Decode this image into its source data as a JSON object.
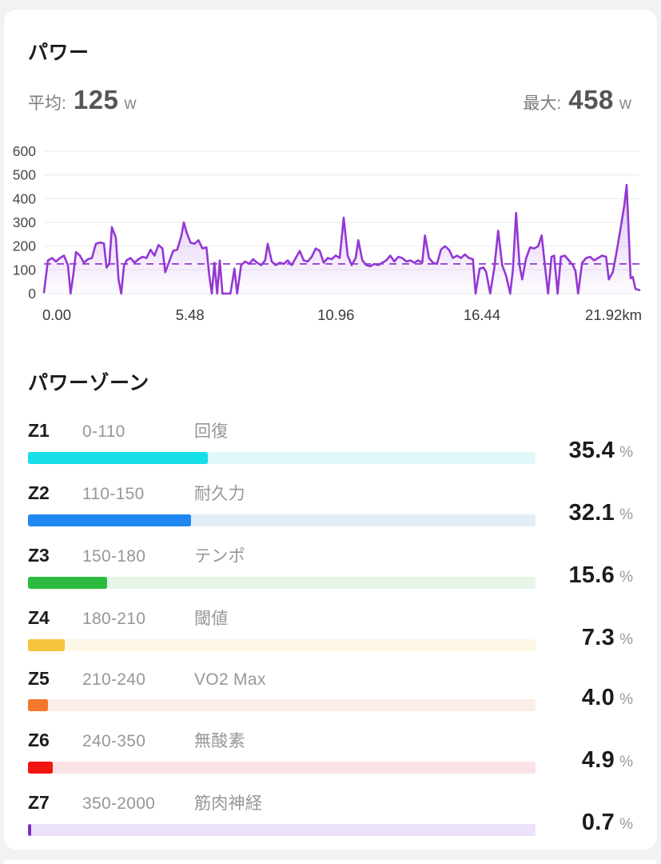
{
  "power_card": {
    "title": "パワー",
    "avg": {
      "label": "平均:",
      "value": "125",
      "unit": "w"
    },
    "max": {
      "label": "最大:",
      "value": "458",
      "unit": "w"
    }
  },
  "chart_data": {
    "type": "area",
    "title": "パワー",
    "ylabel": "w",
    "xlabel": "km",
    "ylim": [
      0,
      600
    ],
    "x_domain": [
      0,
      22.35
    ],
    "grid": "horizontal",
    "average_line": 125,
    "max_value": 458,
    "line_color": "#9338D4",
    "avg_line_color": "#8F3BCE",
    "grid_color": "#E9E9EB",
    "fill_top_color": "rgba(148,63,212,0.30)",
    "fill_bottom_color": "rgba(148,63,212,0.02)",
    "y_ticks": [
      {
        "v": 0,
        "label": "0"
      },
      {
        "v": 100,
        "label": "100"
      },
      {
        "v": 200,
        "label": "200"
      },
      {
        "v": 300,
        "label": "300"
      },
      {
        "v": 400,
        "label": "400"
      },
      {
        "v": 500,
        "label": "500"
      },
      {
        "v": 600,
        "label": "600"
      }
    ],
    "x_ticks": [
      {
        "km": 0,
        "label": "0.00"
      },
      {
        "km": 5.48,
        "label": "5.48"
      },
      {
        "km": 10.96,
        "label": "10.96"
      },
      {
        "km": 16.44,
        "label": "16.44"
      },
      {
        "km": 21.92,
        "label": "21.92km"
      }
    ],
    "points": [
      [
        0,
        5
      ],
      [
        0.15,
        140
      ],
      [
        0.3,
        150
      ],
      [
        0.45,
        135
      ],
      [
        0.6,
        150
      ],
      [
        0.75,
        160
      ],
      [
        0.9,
        120
      ],
      [
        1.0,
        0
      ],
      [
        1.1,
        80
      ],
      [
        1.2,
        175
      ],
      [
        1.35,
        160
      ],
      [
        1.5,
        130
      ],
      [
        1.65,
        145
      ],
      [
        1.8,
        150
      ],
      [
        1.95,
        210
      ],
      [
        2.1,
        215
      ],
      [
        2.25,
        212
      ],
      [
        2.35,
        110
      ],
      [
        2.45,
        125
      ],
      [
        2.55,
        280
      ],
      [
        2.7,
        235
      ],
      [
        2.8,
        60
      ],
      [
        2.9,
        0
      ],
      [
        3.0,
        115
      ],
      [
        3.1,
        140
      ],
      [
        3.25,
        150
      ],
      [
        3.4,
        130
      ],
      [
        3.55,
        145
      ],
      [
        3.7,
        155
      ],
      [
        3.85,
        150
      ],
      [
        4.0,
        185
      ],
      [
        4.15,
        160
      ],
      [
        4.3,
        205
      ],
      [
        4.45,
        190
      ],
      [
        4.55,
        90
      ],
      [
        4.7,
        135
      ],
      [
        4.85,
        180
      ],
      [
        5.0,
        185
      ],
      [
        5.15,
        240
      ],
      [
        5.25,
        300
      ],
      [
        5.35,
        260
      ],
      [
        5.5,
        215
      ],
      [
        5.65,
        210
      ],
      [
        5.8,
        225
      ],
      [
        5.95,
        190
      ],
      [
        6.1,
        195
      ],
      [
        6.2,
        80
      ],
      [
        6.3,
        0
      ],
      [
        6.4,
        130
      ],
      [
        6.5,
        0
      ],
      [
        6.6,
        140
      ],
      [
        6.7,
        0
      ],
      [
        6.85,
        0
      ],
      [
        7.0,
        0
      ],
      [
        7.15,
        105
      ],
      [
        7.25,
        0
      ],
      [
        7.4,
        120
      ],
      [
        7.55,
        135
      ],
      [
        7.7,
        125
      ],
      [
        7.85,
        145
      ],
      [
        8.0,
        130
      ],
      [
        8.15,
        120
      ],
      [
        8.3,
        140
      ],
      [
        8.4,
        210
      ],
      [
        8.55,
        135
      ],
      [
        8.7,
        120
      ],
      [
        8.85,
        130
      ],
      [
        9.0,
        125
      ],
      [
        9.15,
        140
      ],
      [
        9.3,
        120
      ],
      [
        9.45,
        150
      ],
      [
        9.6,
        180
      ],
      [
        9.75,
        140
      ],
      [
        9.9,
        135
      ],
      [
        10.05,
        155
      ],
      [
        10.2,
        190
      ],
      [
        10.35,
        180
      ],
      [
        10.5,
        130
      ],
      [
        10.65,
        150
      ],
      [
        10.8,
        145
      ],
      [
        10.95,
        160
      ],
      [
        11.1,
        150
      ],
      [
        11.25,
        320
      ],
      [
        11.4,
        160
      ],
      [
        11.55,
        120
      ],
      [
        11.7,
        150
      ],
      [
        11.8,
        225
      ],
      [
        11.95,
        140
      ],
      [
        12.1,
        120
      ],
      [
        12.25,
        115
      ],
      [
        12.4,
        125
      ],
      [
        12.55,
        120
      ],
      [
        12.7,
        130
      ],
      [
        12.85,
        140
      ],
      [
        13.0,
        160
      ],
      [
        13.15,
        135
      ],
      [
        13.3,
        155
      ],
      [
        13.45,
        150
      ],
      [
        13.6,
        135
      ],
      [
        13.75,
        140
      ],
      [
        13.9,
        130
      ],
      [
        14.05,
        140
      ],
      [
        14.2,
        130
      ],
      [
        14.3,
        245
      ],
      [
        14.45,
        150
      ],
      [
        14.6,
        130
      ],
      [
        14.75,
        125
      ],
      [
        14.9,
        185
      ],
      [
        15.05,
        200
      ],
      [
        15.2,
        185
      ],
      [
        15.35,
        150
      ],
      [
        15.5,
        160
      ],
      [
        15.65,
        150
      ],
      [
        15.8,
        165
      ],
      [
        15.95,
        150
      ],
      [
        16.1,
        145
      ],
      [
        16.2,
        0
      ],
      [
        16.35,
        105
      ],
      [
        16.5,
        110
      ],
      [
        16.6,
        90
      ],
      [
        16.75,
        0
      ],
      [
        16.9,
        105
      ],
      [
        17.05,
        265
      ],
      [
        17.2,
        120
      ],
      [
        17.35,
        75
      ],
      [
        17.5,
        0
      ],
      [
        17.6,
        100
      ],
      [
        17.72,
        340
      ],
      [
        17.85,
        120
      ],
      [
        17.95,
        60
      ],
      [
        18.1,
        150
      ],
      [
        18.25,
        195
      ],
      [
        18.4,
        190
      ],
      [
        18.55,
        200
      ],
      [
        18.68,
        245
      ],
      [
        18.8,
        120
      ],
      [
        18.92,
        0
      ],
      [
        19.05,
        155
      ],
      [
        19.15,
        160
      ],
      [
        19.28,
        0
      ],
      [
        19.4,
        155
      ],
      [
        19.55,
        160
      ],
      [
        19.7,
        140
      ],
      [
        19.85,
        120
      ],
      [
        19.95,
        95
      ],
      [
        20.05,
        0
      ],
      [
        20.2,
        130
      ],
      [
        20.35,
        150
      ],
      [
        20.5,
        155
      ],
      [
        20.65,
        140
      ],
      [
        20.8,
        150
      ],
      [
        20.95,
        160
      ],
      [
        21.1,
        155
      ],
      [
        21.2,
        60
      ],
      [
        21.35,
        90
      ],
      [
        21.5,
        180
      ],
      [
        21.65,
        280
      ],
      [
        21.78,
        370
      ],
      [
        21.87,
        458
      ],
      [
        21.95,
        250
      ],
      [
        22.02,
        65
      ],
      [
        22.1,
        70
      ],
      [
        22.2,
        20
      ],
      [
        22.35,
        15
      ]
    ]
  },
  "zones_card": {
    "title": "パワーゾーン",
    "percent_unit": "%",
    "zones": [
      {
        "id": "Z1",
        "range": "0-110",
        "name": "回復",
        "pct": "35.4",
        "pct_value": 35.4,
        "color": "#17DFE8",
        "track": "#E0F8FA"
      },
      {
        "id": "Z2",
        "range": "110-150",
        "name": "耐久力",
        "pct": "32.1",
        "pct_value": 32.1,
        "color": "#1E87F0",
        "track": "#E3EDF8"
      },
      {
        "id": "Z3",
        "range": "150-180",
        "name": "テンポ",
        "pct": "15.6",
        "pct_value": 15.6,
        "color": "#2CBB3F",
        "track": "#E8F5E9"
      },
      {
        "id": "Z4",
        "range": "180-210",
        "name": "閾値",
        "pct": "7.3",
        "pct_value": 7.3,
        "color": "#F6C33E",
        "track": "#FCF7E6"
      },
      {
        "id": "Z5",
        "range": "210-240",
        "name": "VO2 Max",
        "pct": "4.0",
        "pct_value": 4.0,
        "color": "#F4772C",
        "track": "#FBEDE7"
      },
      {
        "id": "Z6",
        "range": "240-350",
        "name": "無酸素",
        "pct": "4.9",
        "pct_value": 4.9,
        "color": "#F21511",
        "track": "#FAE3E5"
      },
      {
        "id": "Z7",
        "range": "350-2000",
        "name": "筋肉神経",
        "pct": "0.7",
        "pct_value": 0.7,
        "color": "#7B2DC8",
        "track": "#EBE1F8"
      }
    ]
  }
}
